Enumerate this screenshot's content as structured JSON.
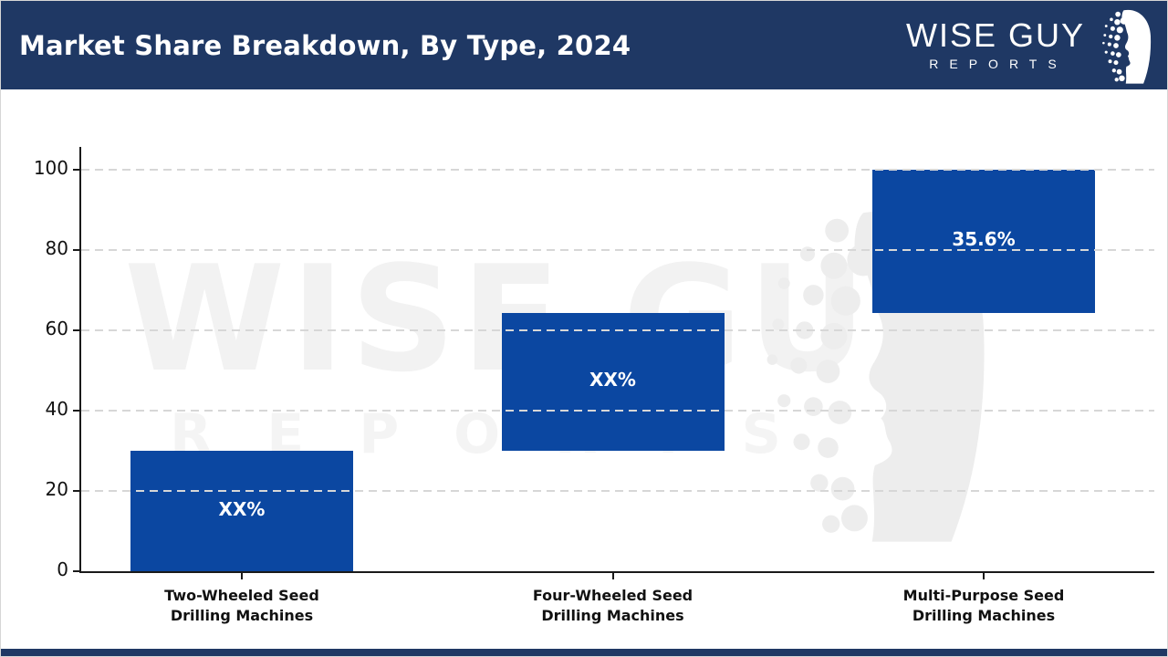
{
  "header": {
    "title": "Market Share Breakdown, By Type, 2024",
    "logo": {
      "name": "WISE GUY",
      "tagline": "REPORTS"
    }
  },
  "watermark": {
    "brand": "WISE GUY",
    "tagline": "REPORTS"
  },
  "chart_data": {
    "type": "bar",
    "subtype": "floating-segment-waterfall",
    "title": "Market Share Breakdown, By Type, 2024",
    "categories": [
      "Two-Wheeled Seed\nDrilling Machines",
      "Four-Wheeled Seed\nDrilling Machines",
      "Multi-Purpose Seed\nDrilling Machines"
    ],
    "segments": [
      {
        "category": "Two-Wheeled Seed Drilling Machines",
        "start": 0,
        "end": 30,
        "share_value": 30,
        "data_label": "XX%"
      },
      {
        "category": "Four-Wheeled Seed Drilling Machines",
        "start": 30,
        "end": 64.4,
        "share_value": 34.4,
        "data_label": "XX%"
      },
      {
        "category": "Multi-Purpose Seed Drilling Machines",
        "start": 64.4,
        "end": 100,
        "share_value": 35.6,
        "data_label": "35.6%"
      }
    ],
    "xlabel": "",
    "ylabel": "",
    "ylim": [
      0,
      105
    ],
    "yticks": [
      0,
      20,
      40,
      60,
      80,
      100
    ],
    "grid": "horizontal dashed",
    "legend": "none",
    "colors": {
      "bar": "#0B47A1",
      "bar_label": "#FFFFFF",
      "grid": "#D7D7D7",
      "axis": "#1A1A1A",
      "header_bg": "#1F3864",
      "tick_label": "#111111"
    }
  }
}
